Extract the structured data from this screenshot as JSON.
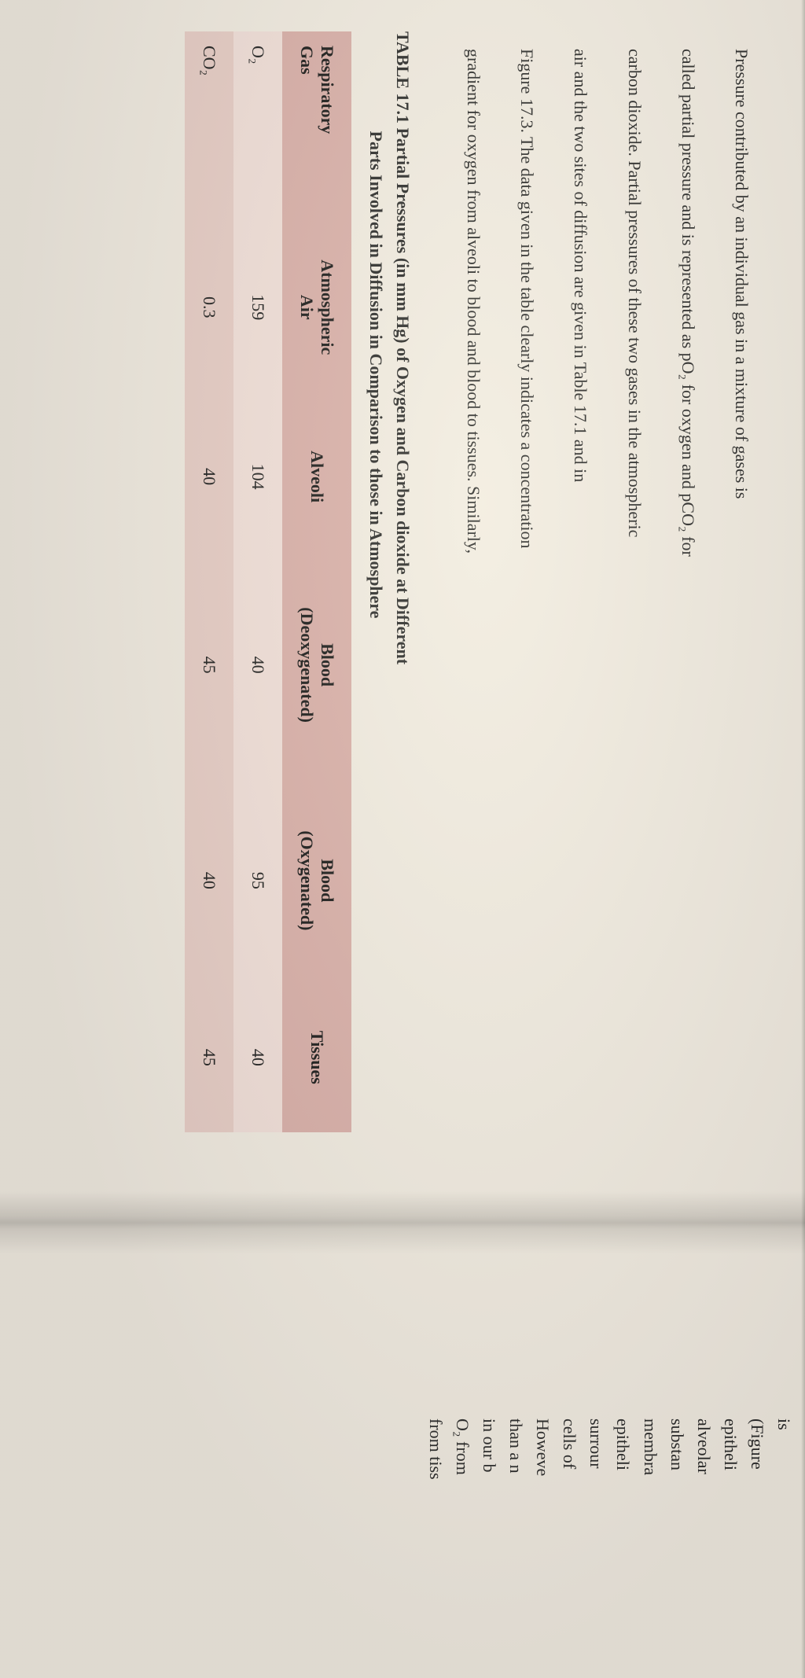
{
  "paragraph": {
    "line0": "Pressure contributed by an individual gas in a mixture of gases is",
    "line1": "called partial pressure and is represented as pO₂ for oxygen and pCO₂ for",
    "line2": "carbon dioxide. Partial pressures of these two gases in the atmospheric",
    "line3": "air and the two sites of diffusion are given in Table 17.1 and in",
    "line4": "Figure 17.3. The data given in the table clearly indicates a concentration",
    "line5": "gradient for oxygen from alveoli to blood and blood to tissues. Similarly,"
  },
  "rightcol": {
    "l0": "is",
    "l1": "(Figure",
    "l2": "epitheli",
    "l3": "alveolar",
    "l4": "substan",
    "l5": "membra",
    "l6": "epitheli",
    "l7": "surrour",
    "l8": "cells of",
    "l9": "Howeve",
    "l10": "than a n",
    "l11": "in our b",
    "l12": "O₂ from",
    "l13": "from tiss"
  },
  "title": {
    "label": "TABLE 17.1",
    "line1": "Partial Pressures (in mm Hg) of Oxygen and Carbon dioxide at Different",
    "line2": "Parts Involved in Diffusion in Comparison to those in Atmosphere"
  },
  "table": {
    "columns": [
      {
        "line1": "Respiratory",
        "line2": "Gas"
      },
      {
        "line1": "Atmospheric",
        "line2": "Air"
      },
      {
        "line1": "Alveoli",
        "line2": ""
      },
      {
        "line1": "Blood",
        "line2": "(Deoxygenated)"
      },
      {
        "line1": "Blood",
        "line2": "(Oxygenated)"
      },
      {
        "line1": "Tissues",
        "line2": ""
      }
    ],
    "rows": [
      {
        "gas": "O₂",
        "atm": "159",
        "alv": "104",
        "deoxy": "40",
        "oxy": "95",
        "tissue": "40"
      },
      {
        "gas": "CO₂",
        "atm": "0.3",
        "alv": "40",
        "deoxy": "45",
        "oxy": "40",
        "tissue": "45"
      }
    ],
    "header_bg": "#dab0aa",
    "row_bg_1": "#f2e0da",
    "row_bg_2": "#e8cec7"
  }
}
